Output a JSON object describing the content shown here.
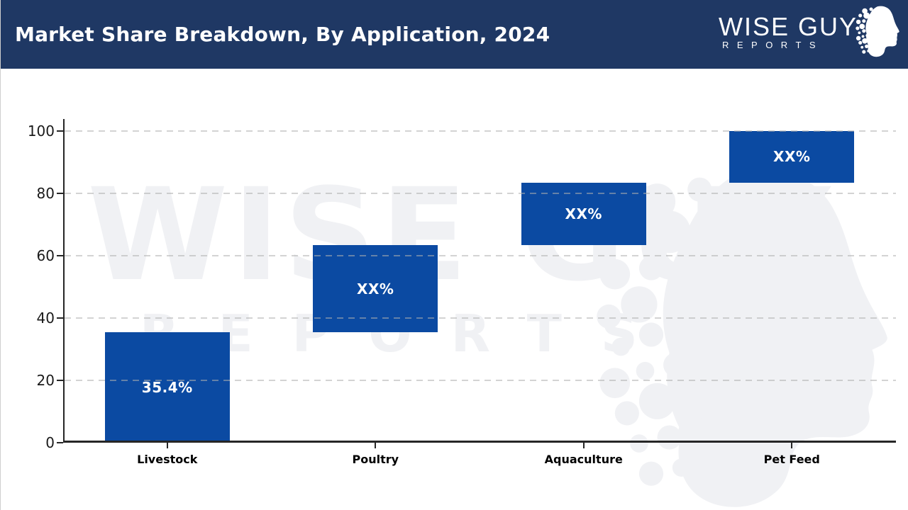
{
  "header": {
    "title": "Market Share Breakdown, By Application, 2024",
    "bg_color": "#1f3864",
    "text_color": "#ffffff",
    "logo": {
      "line1": "WISE GUY",
      "line2": "REPORTS"
    }
  },
  "watermark": {
    "line1": "WISE GUY",
    "line2": "REPORTS",
    "color": "#f0f1f4"
  },
  "chart_data": {
    "type": "bar",
    "subtype": "waterfall",
    "title": "Market Share Breakdown, By Application, 2024",
    "categories": [
      "Livestock",
      "Poultry",
      "Aquaculture",
      "Pet Feed"
    ],
    "segments": [
      {
        "category": "Livestock",
        "start": 0,
        "end": 35.4,
        "label": "35.4%"
      },
      {
        "category": "Poultry",
        "start": 35.4,
        "end": 63.3,
        "label": "XX%"
      },
      {
        "category": "Aquaculture",
        "start": 63.3,
        "end": 83.5,
        "label": "XX%"
      },
      {
        "category": "Pet Feed",
        "start": 83.5,
        "end": 100,
        "label": "XX%"
      }
    ],
    "xlabel": "",
    "ylabel": "",
    "ylim": [
      0,
      100
    ],
    "yticks": [
      0,
      20,
      40,
      60,
      80,
      100
    ],
    "grid": "horizontal-dashed",
    "legend": "none",
    "bar_color": "#0b4aa2",
    "bar_label_color": "#ffffff",
    "axis_color": "#262626",
    "gridline_color": "#d9d9d9"
  }
}
